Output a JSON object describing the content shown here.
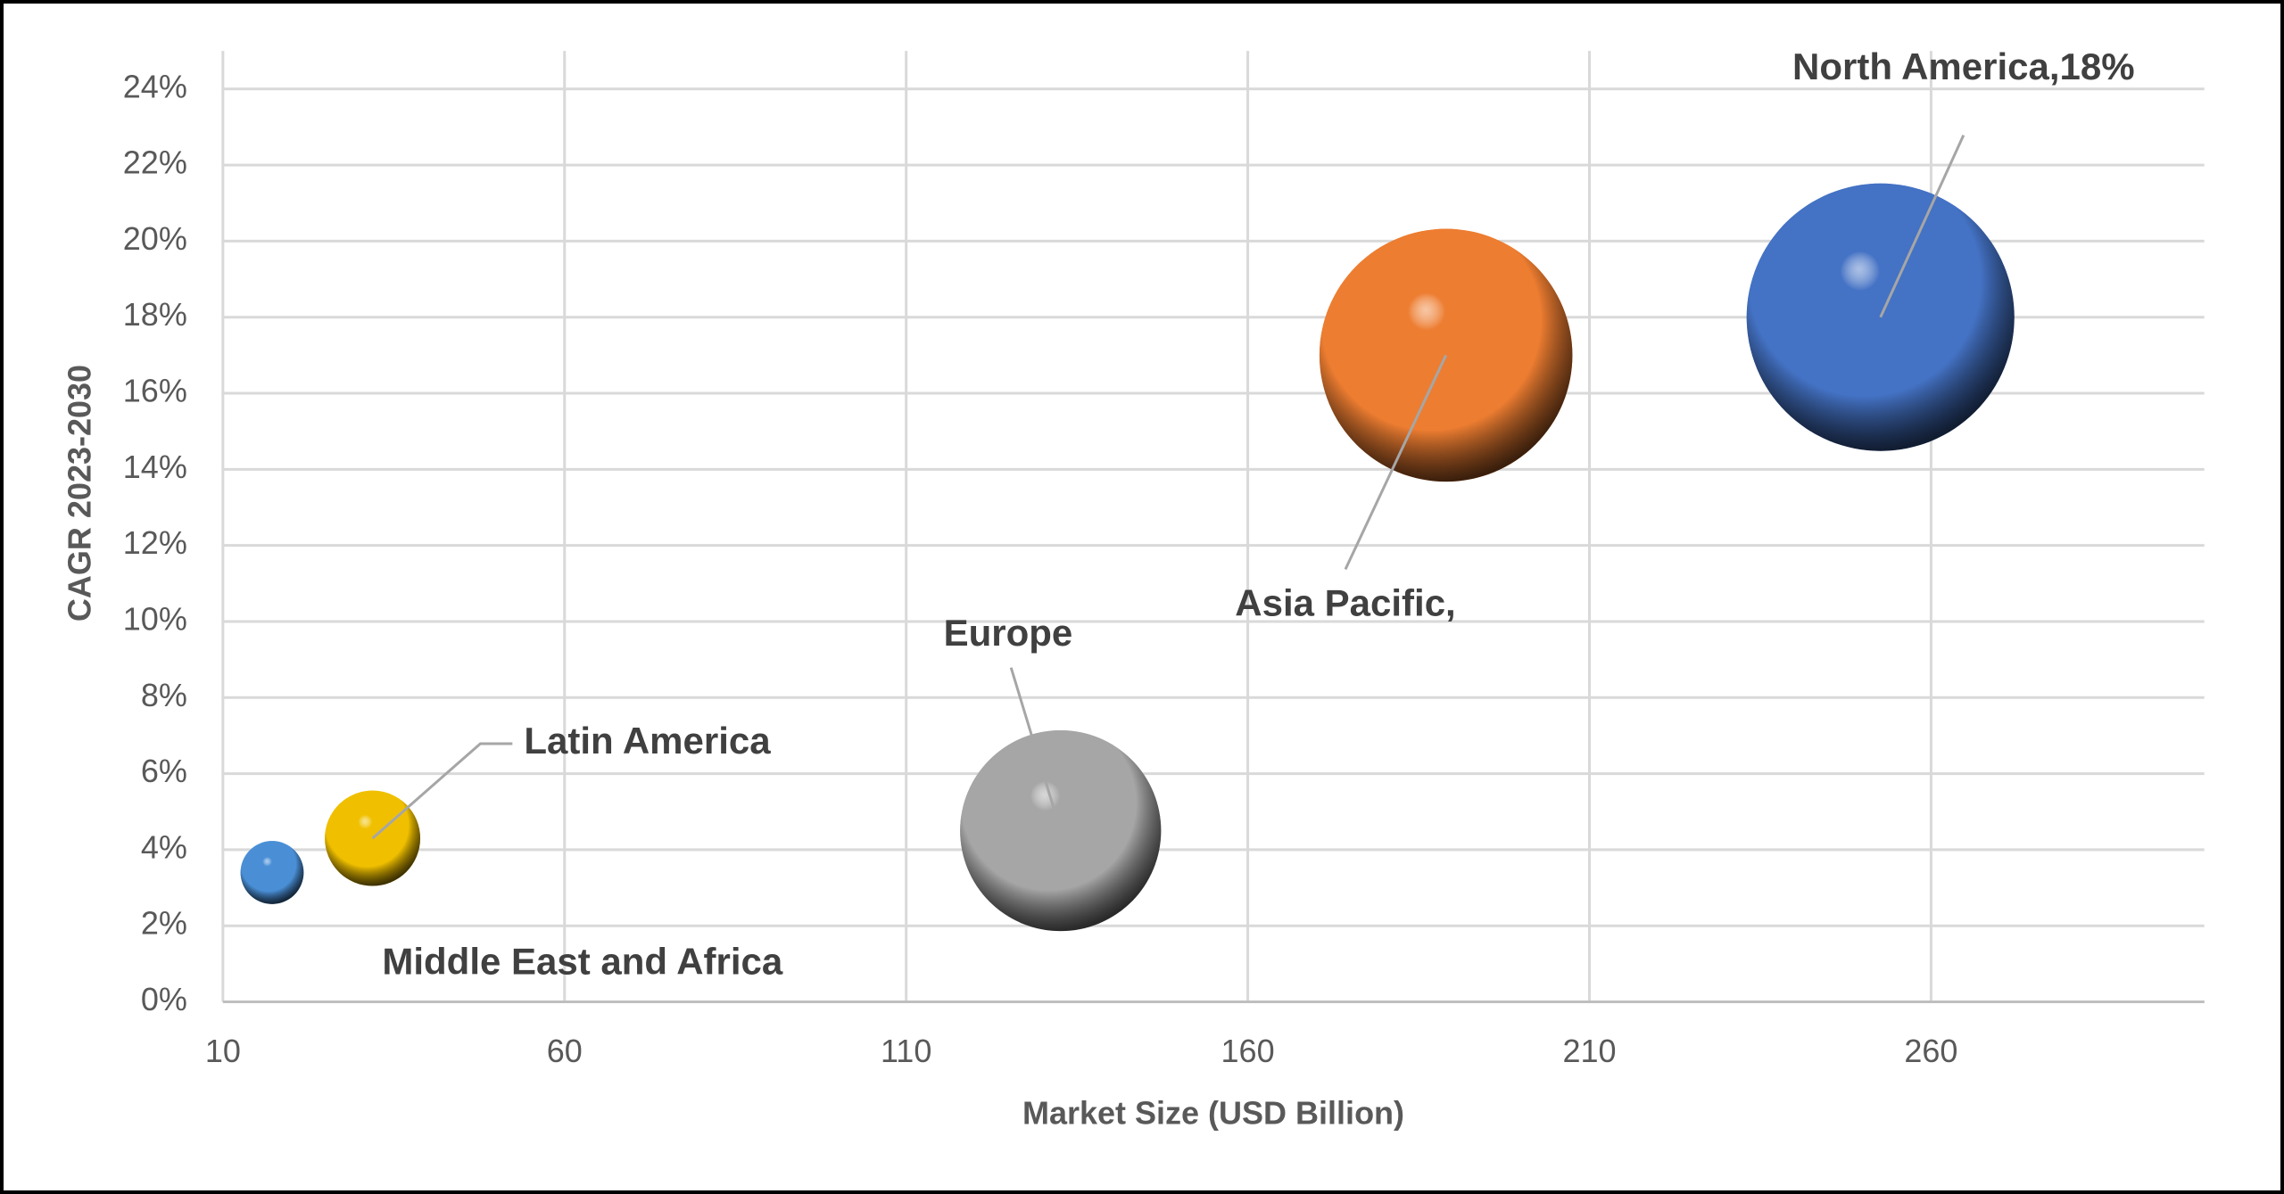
{
  "chart_data": {
    "type": "bubble",
    "x_label": "Market Size (USD Billion)",
    "y_label": "CAGR 2023-2030",
    "labels": [
      "Middle East and Africa",
      "Latin America",
      "Europe",
      "Asia Pacific,",
      "North America,18%"
    ],
    "x": [
      17.2,
      31.9,
      132.6,
      189,
      252.6
    ],
    "values": [
      3.4,
      4.3,
      4.5,
      17,
      18
    ],
    "sizes": [
      14,
      32,
      142,
      225,
      252
    ],
    "colors": [
      "#4a8fd6",
      "#f0c000",
      "#a6a6a6",
      "#ed7d31",
      "#4472c4"
    ],
    "xlim": [
      10,
      300
    ],
    "xticks": [
      10,
      60,
      110,
      160,
      210,
      260
    ],
    "ylim": [
      0,
      25
    ],
    "yticks": [
      {
        "value": 0,
        "label": "0%"
      },
      {
        "value": 2,
        "label": "2%"
      },
      {
        "value": 4,
        "label": "4%"
      },
      {
        "value": 6,
        "label": "6%"
      },
      {
        "value": 8,
        "label": "8%"
      },
      {
        "value": 10,
        "label": "10%"
      },
      {
        "value": 12,
        "label": "12%"
      },
      {
        "value": 14,
        "label": "14%"
      },
      {
        "value": 16,
        "label": "16%"
      },
      {
        "value": 18,
        "label": "18%"
      },
      {
        "value": 20,
        "label": "20%"
      },
      {
        "value": 22,
        "label": "22%"
      },
      {
        "value": 24,
        "label": "24%"
      }
    ],
    "grid": true
  }
}
